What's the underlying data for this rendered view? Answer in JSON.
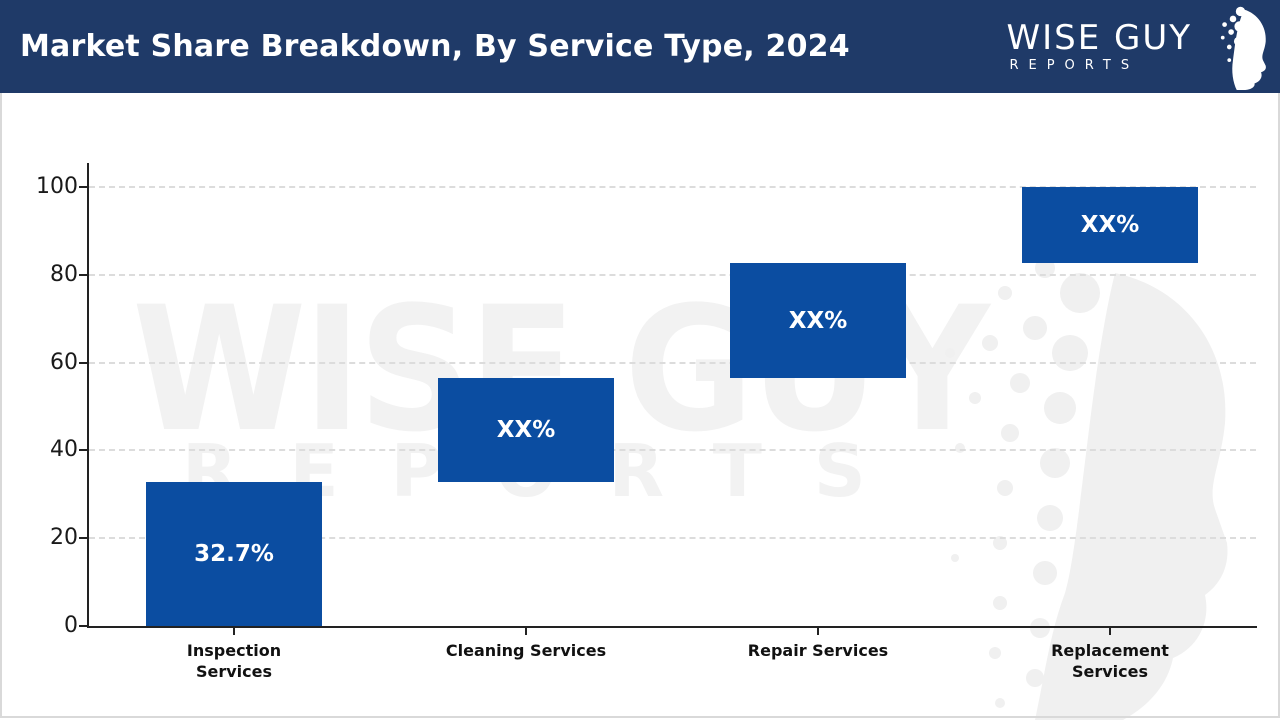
{
  "header": {
    "title": "Market Share Breakdown, By Service Type, 2024",
    "logo": {
      "wordmark": "WISE GUY",
      "subtext": "REPORTS"
    }
  },
  "watermark": {
    "line1": "WISE GUY",
    "line2": "REPORTS"
  },
  "colors": {
    "header_bg": "#1f3a68",
    "bar": "#0b4da1",
    "gridline": "#dcdcdc",
    "axis": "#222222",
    "tick_text": "#1a1a1a",
    "category_text": "#111111",
    "value_text": "#ffffff",
    "watermark": "#f2f2f2"
  },
  "chart_data": {
    "type": "bar",
    "subtype": "waterfall",
    "title": "Market Share Breakdown, By Service Type, 2024",
    "categories": [
      "Inspection Services",
      "Cleaning Services",
      "Repair Services",
      "Replacement Services"
    ],
    "category_lines": [
      [
        "Inspection",
        "Services"
      ],
      [
        "Cleaning Services"
      ],
      [
        "Repair Services"
      ],
      [
        "Replacement",
        "Services"
      ]
    ],
    "segments": [
      {
        "category": "Inspection Services",
        "start": 0,
        "end": 32.7,
        "label": "32.7%"
      },
      {
        "category": "Cleaning Services",
        "start": 32.7,
        "end": 56.4,
        "label": "XX%"
      },
      {
        "category": "Repair Services",
        "start": 56.4,
        "end": 82.6,
        "label": "XX%"
      },
      {
        "category": "Replacement Services",
        "start": 82.6,
        "end": 100,
        "label": "XX%"
      }
    ],
    "ylim": [
      0,
      100
    ],
    "yticks": [
      0,
      20,
      40,
      60,
      80,
      100
    ],
    "xlabel": "",
    "ylabel": "",
    "grid": "horizontal-dashed",
    "legend": "none",
    "bar_color": "#0b4da1"
  }
}
